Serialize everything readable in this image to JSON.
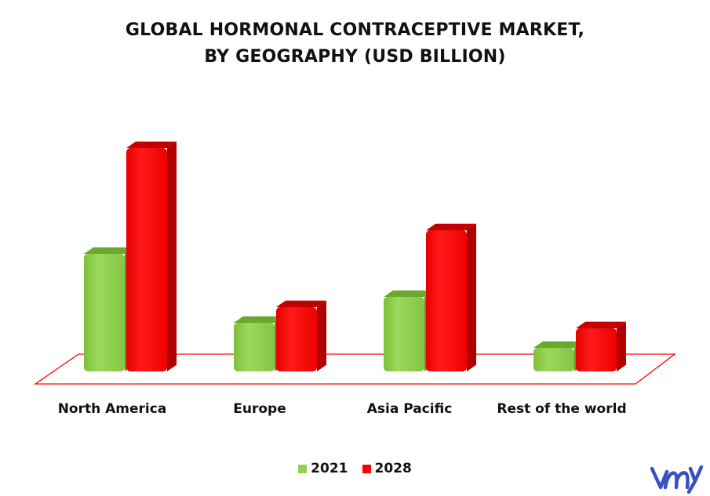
{
  "title_lines": [
    "GLOBAL HORMONAL CONTRACEPTIVE MARKET,",
    "BY GEOGRAPHY (USD BILLION)"
  ],
  "colors": {
    "s2021": "#92d050",
    "s2028": "#ff0000",
    "floor": "#ff0000",
    "logo": "#3b4fc4"
  },
  "legend": [
    {
      "label": "2021",
      "color": "#92d050"
    },
    {
      "label": "2028",
      "color": "#ff0000"
    }
  ],
  "chart_data": {
    "type": "bar",
    "title": "GLOBAL HORMONAL CONTRACEPTIVE MARKET, BY GEOGRAPHY (USD BILLION)",
    "categories": [
      "North America",
      "Europe",
      "Asia Pacific",
      "Rest of the world"
    ],
    "series": [
      {
        "name": "2021",
        "values": [
          150,
          62,
          95,
          30
        ]
      },
      {
        "name": "2028",
        "values": [
          285,
          82,
          180,
          55
        ]
      }
    ],
    "xlabel": "",
    "ylabel": "",
    "grid": false,
    "legend_position": "bottom"
  }
}
